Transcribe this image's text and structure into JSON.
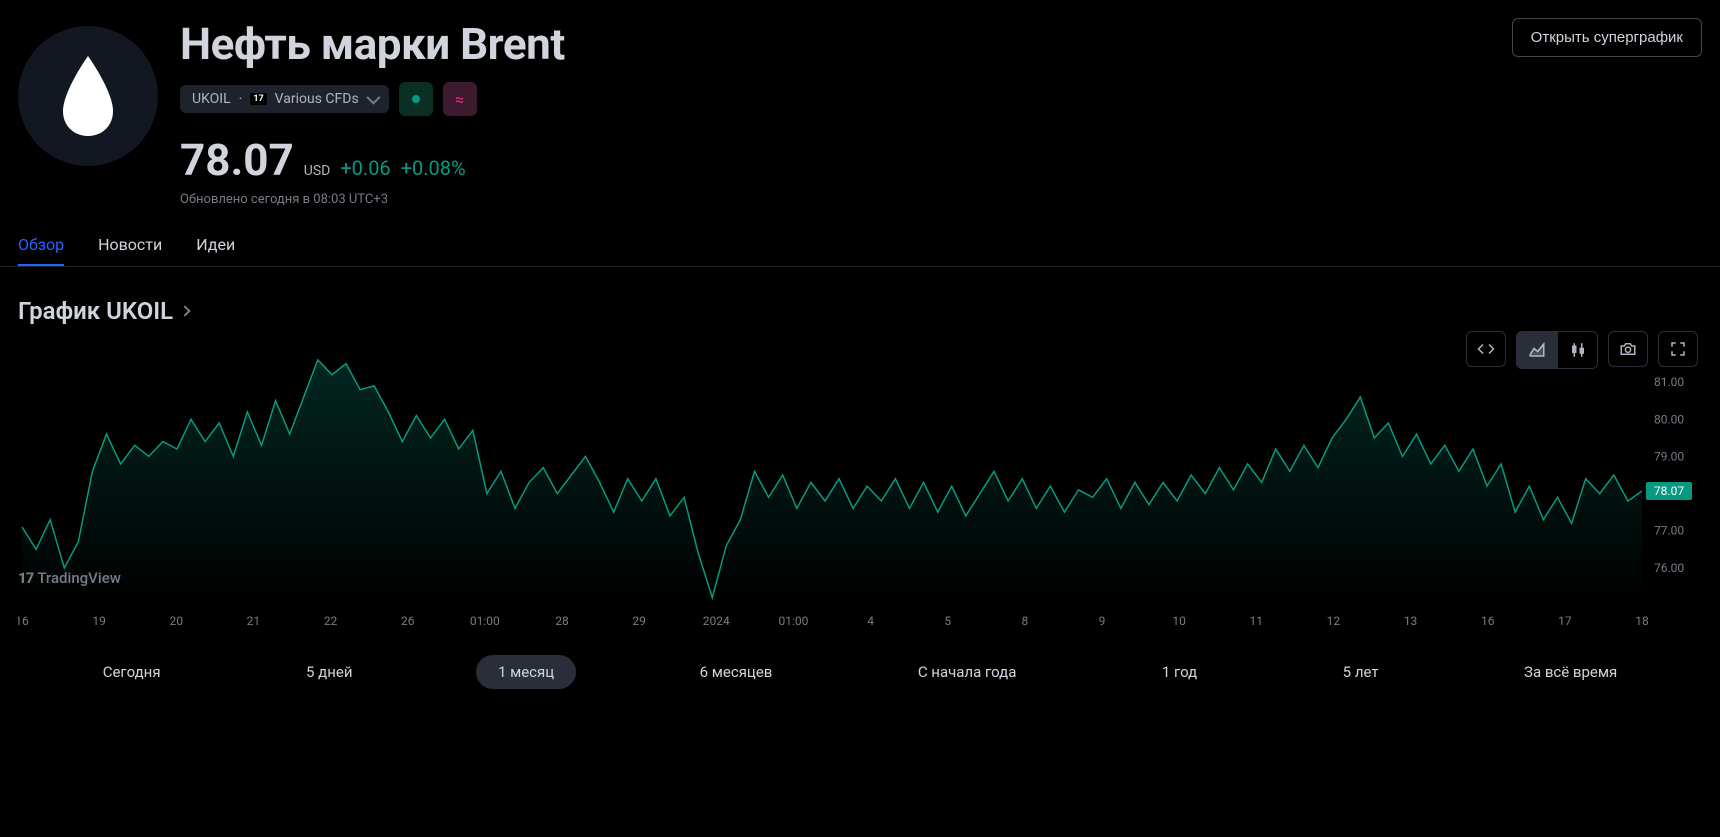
{
  "header": {
    "title": "Нефть марки Brent",
    "symbol": "UKOIL",
    "provider": "Various CFDs",
    "open_super": "Открыть суперграфик"
  },
  "price": {
    "value": "78.07",
    "currency": "USD",
    "change_abs": "+0.06",
    "change_pct": "+0.08%",
    "updated": "Обновлено сегодня в 08:03 UTC+3"
  },
  "tabs": {
    "overview": "Обзор",
    "news": "Новости",
    "ideas": "Идеи"
  },
  "chart": {
    "title": "График UKOIL",
    "watermark": "TradingView",
    "type": "area",
    "line_color": "#089981",
    "fill_top_color": "rgba(8,153,129,0.25)",
    "fill_bottom_color": "rgba(8,153,129,0.0)",
    "background_color": "#000000",
    "axis_label_color": "#787b86",
    "axis_fontsize": 12,
    "price_badge_bg": "#089981",
    "price_badge_text": "78.07",
    "y_range": [
      75.0,
      82.0
    ],
    "y_ticks": [
      {
        "v": 81.0,
        "label": "81.00"
      },
      {
        "v": 80.0,
        "label": "80.00"
      },
      {
        "v": 79.0,
        "label": "79.00"
      },
      {
        "v": 78.07,
        "label": "78.07",
        "badge": true
      },
      {
        "v": 77.0,
        "label": "77.00"
      },
      {
        "v": 76.0,
        "label": "76.00"
      }
    ],
    "x_labels": [
      "16",
      "19",
      "20",
      "21",
      "22",
      "26",
      "01:00",
      "28",
      "29",
      "2024",
      "01:00",
      "4",
      "5",
      "8",
      "9",
      "10",
      "11",
      "12",
      "13",
      "16",
      "17",
      "18"
    ],
    "series": [
      77.1,
      76.5,
      77.3,
      76.0,
      76.7,
      78.6,
      79.6,
      78.8,
      79.3,
      79.0,
      79.4,
      79.2,
      80.0,
      79.4,
      79.9,
      79.0,
      80.2,
      79.3,
      80.5,
      79.6,
      80.6,
      81.6,
      81.2,
      81.5,
      80.8,
      80.9,
      80.2,
      79.4,
      80.1,
      79.5,
      80.0,
      79.2,
      79.7,
      78.0,
      78.6,
      77.6,
      78.3,
      78.7,
      78.0,
      78.5,
      79.0,
      78.3,
      77.5,
      78.4,
      77.8,
      78.4,
      77.4,
      77.9,
      76.4,
      75.2,
      76.6,
      77.3,
      78.6,
      77.9,
      78.5,
      77.6,
      78.3,
      77.8,
      78.4,
      77.6,
      78.2,
      77.8,
      78.4,
      77.6,
      78.3,
      77.5,
      78.2,
      77.4,
      78.0,
      78.6,
      77.8,
      78.4,
      77.6,
      78.2,
      77.5,
      78.1,
      77.9,
      78.4,
      77.6,
      78.3,
      77.7,
      78.3,
      77.8,
      78.5,
      78.0,
      78.7,
      78.1,
      78.8,
      78.3,
      79.2,
      78.6,
      79.3,
      78.7,
      79.5,
      80.0,
      80.6,
      79.5,
      79.9,
      79.0,
      79.6,
      78.8,
      79.3,
      78.6,
      79.2,
      78.2,
      78.8,
      77.5,
      78.2,
      77.3,
      77.9,
      77.2,
      78.4,
      78.0,
      78.5,
      77.8,
      78.07
    ]
  },
  "ranges": {
    "today": "Сегодня",
    "d5": "5 дней",
    "m1": "1 месяц",
    "m6": "6 месяцев",
    "ytd": "С начала года",
    "y1": "1 год",
    "y5": "5 лет",
    "all": "За всё время"
  }
}
